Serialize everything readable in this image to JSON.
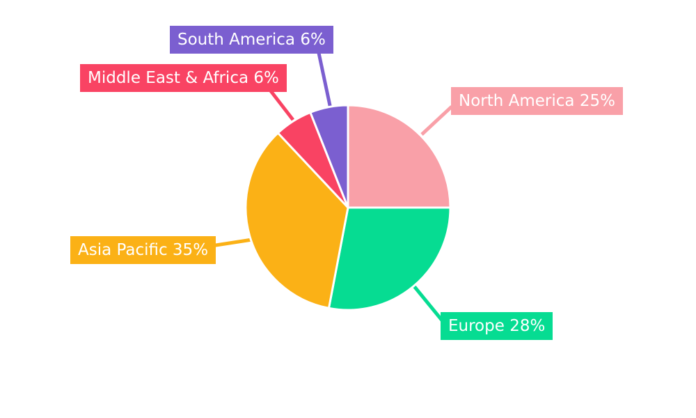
{
  "page": {
    "background_color": "#ffffff",
    "text_color": "#ffffff"
  },
  "chart_data": {
    "type": "pie",
    "units": "%",
    "direction": "clockwise",
    "start_angle": "12 o'clock",
    "legend_position": "callout labels with leader lines",
    "categories": [
      "North America",
      "Europe",
      "Asia Pacific",
      "Middle East & Africa",
      "South America"
    ],
    "values": [
      25,
      28,
      35,
      6,
      6
    ],
    "slices": [
      {
        "id": "north-america",
        "label": "North America",
        "value": 25,
        "display": "North America 25%",
        "color": "#F9A0A8"
      },
      {
        "id": "europe",
        "label": "Europe",
        "value": 28,
        "display": "Europe 28%",
        "color": "#06DC92"
      },
      {
        "id": "asia-pacific",
        "label": "Asia Pacific",
        "value": 35,
        "display": "Asia Pacific 35%",
        "color": "#FBB116"
      },
      {
        "id": "middle-east-africa",
        "label": "Middle East & Africa",
        "value": 6,
        "display": "Middle East & Africa 6%",
        "color": "#F94363"
      },
      {
        "id": "south-america",
        "label": "South America",
        "value": 6,
        "display": "South America 6%",
        "color": "#7B5FD0"
      }
    ]
  }
}
